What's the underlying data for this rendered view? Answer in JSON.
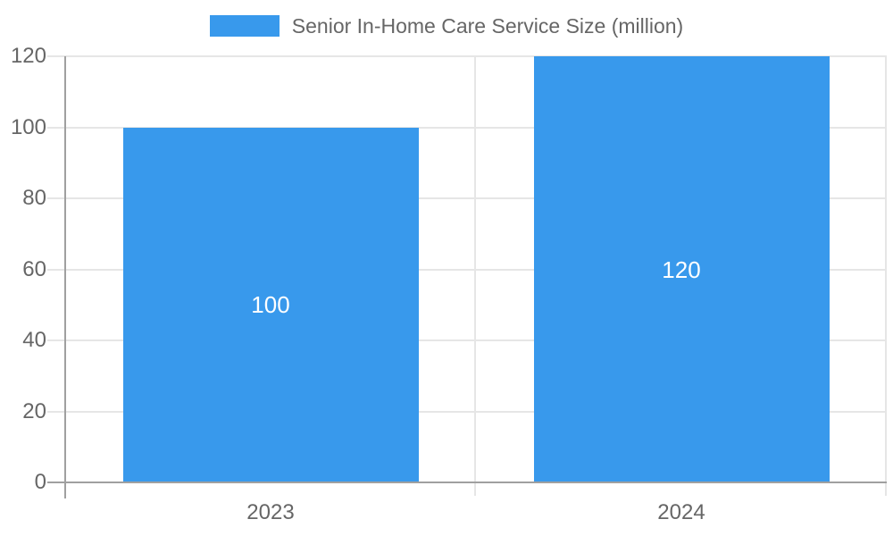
{
  "chart": {
    "background": "#ffffff",
    "legend": {
      "label": "Senior In-Home Care Service Size (million)",
      "swatch_color": "#3899EC"
    }
  },
  "chart_data": {
    "type": "bar",
    "categories": [
      "2023",
      "2024"
    ],
    "series": [
      {
        "name": "Senior In-Home Care Service Size (million)",
        "values": [
          100,
          120
        ],
        "color": "#3899EC"
      }
    ],
    "data_labels": [
      "100",
      "120"
    ],
    "data_label_color": "#ffffff",
    "title": "",
    "xlabel": "",
    "ylabel": "",
    "ylim": [
      0,
      120
    ],
    "yticks": [
      0,
      20,
      40,
      60,
      80,
      100,
      120
    ],
    "grid": true,
    "legend_position": "top",
    "grid_color": "#e6e6e6",
    "axis_color": "#a0a0a0",
    "tick_label_color": "#666666"
  }
}
